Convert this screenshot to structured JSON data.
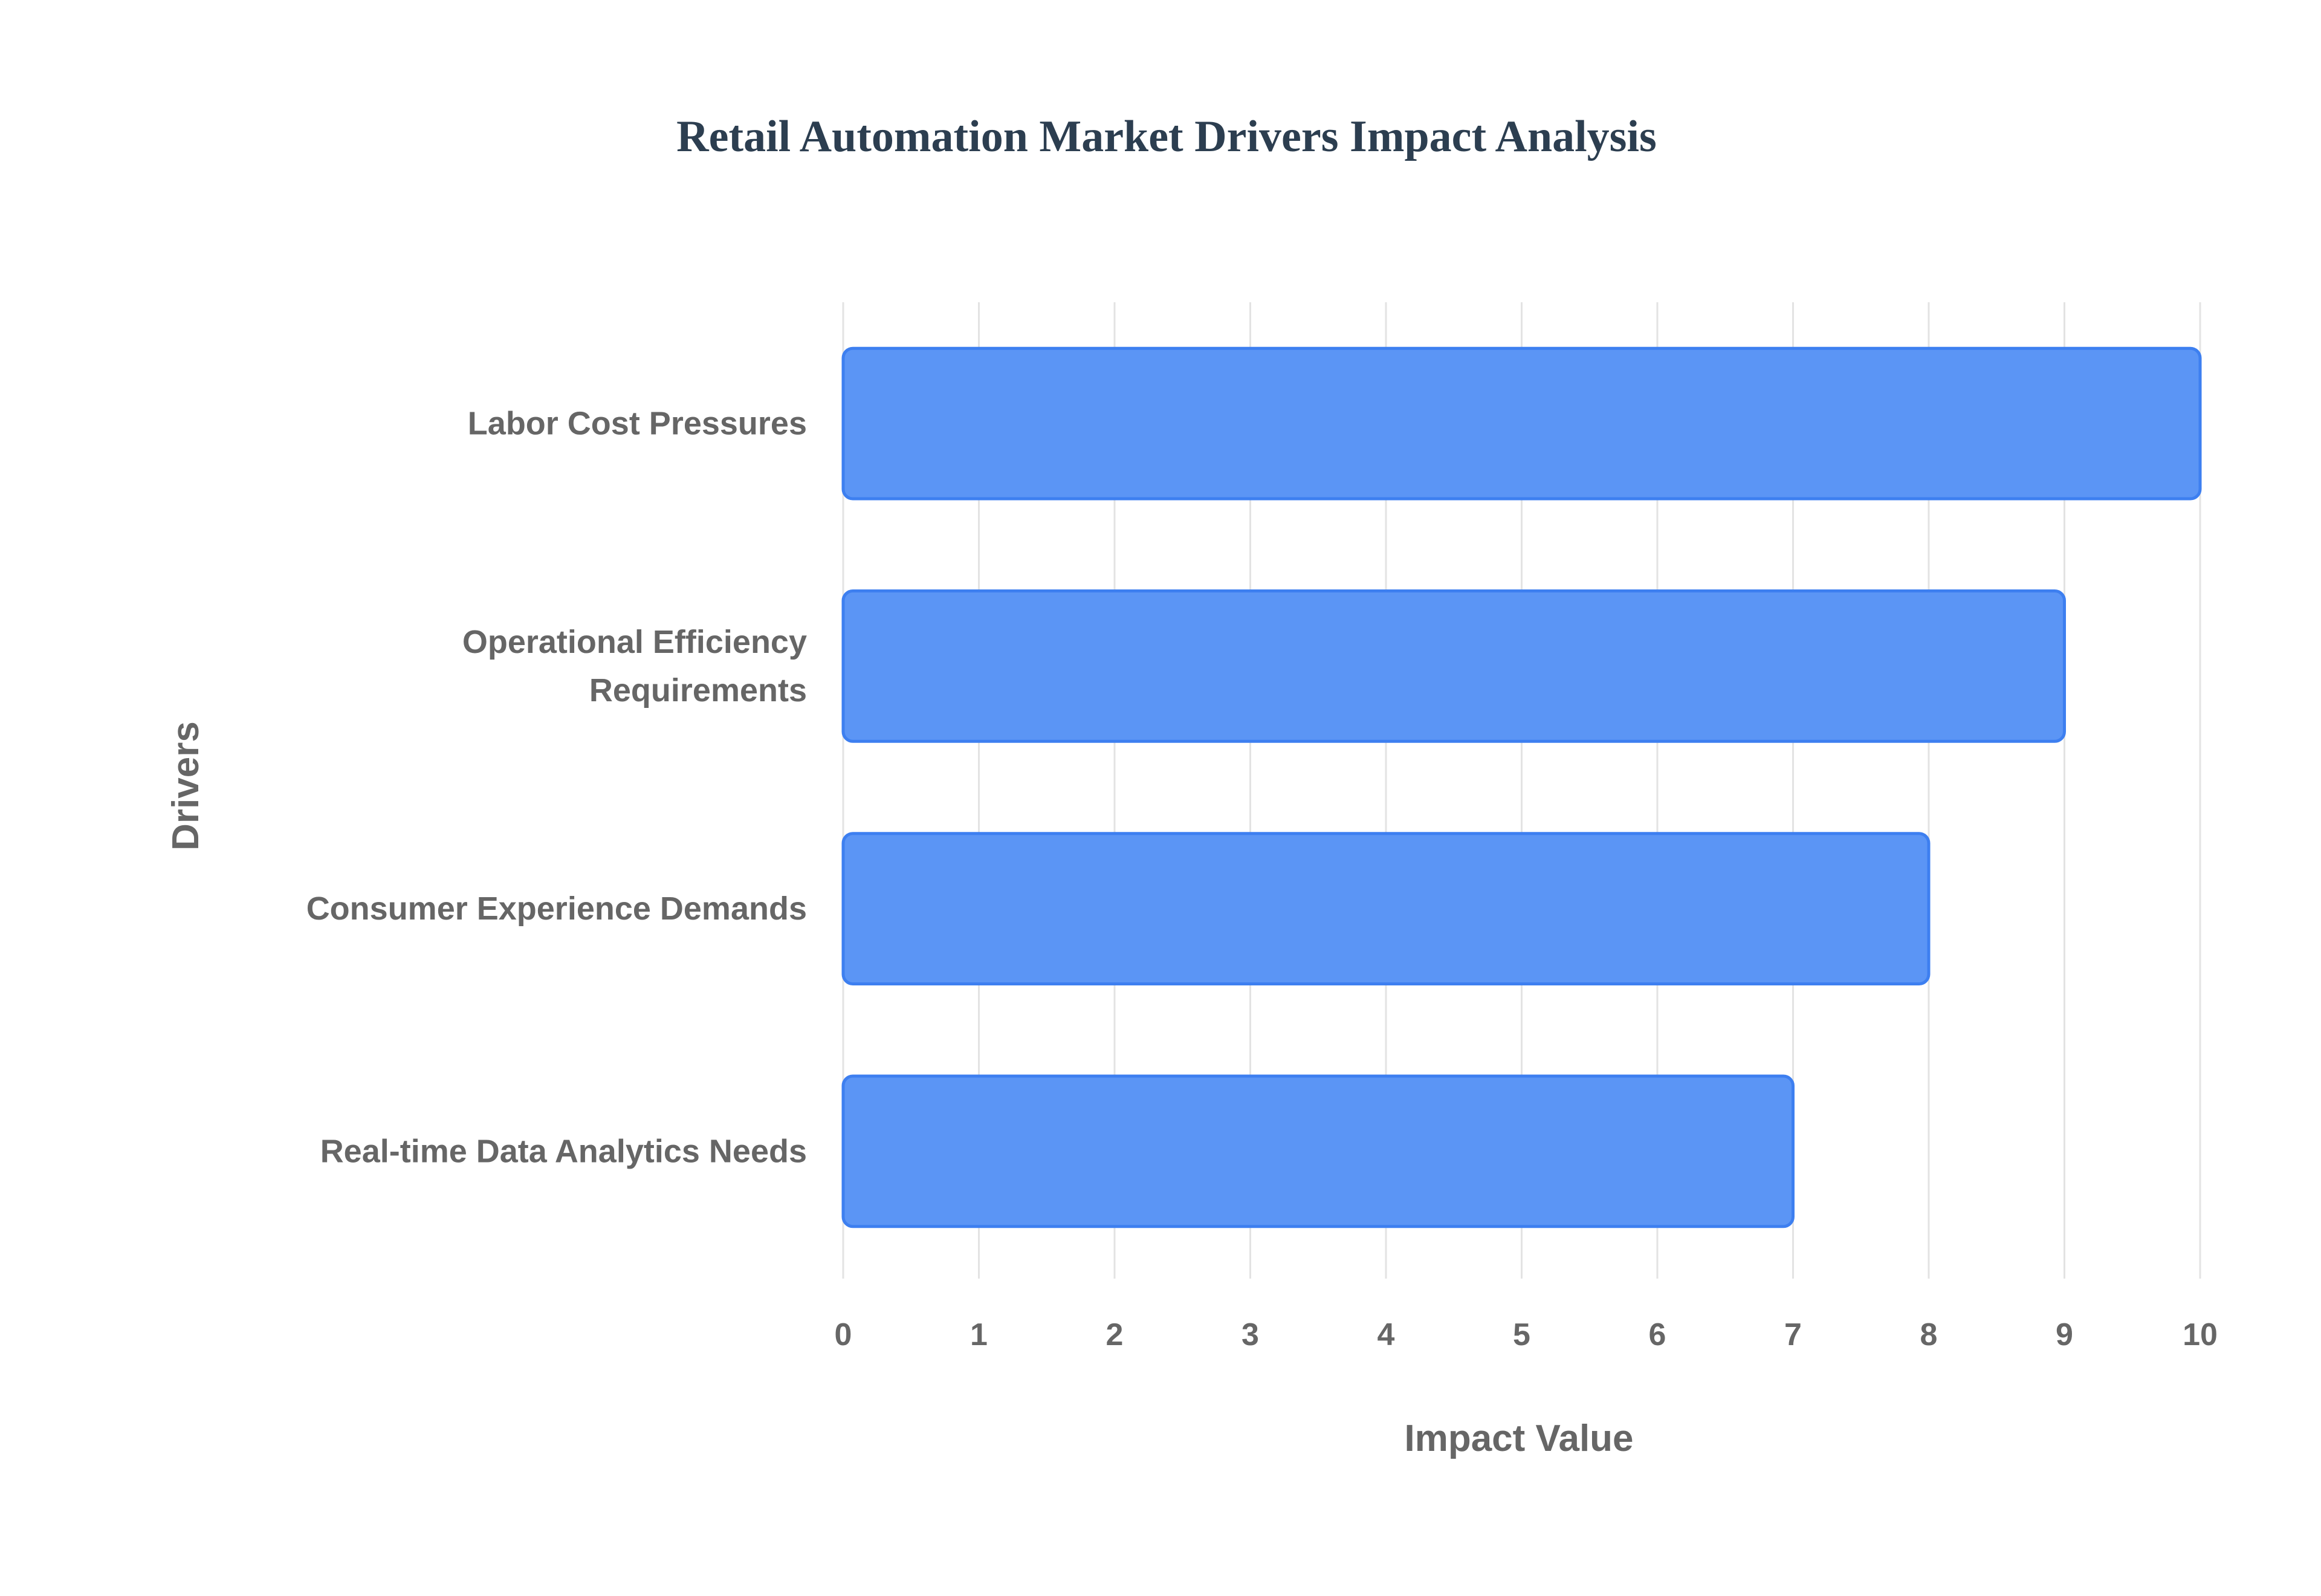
{
  "chart_data": {
    "type": "bar",
    "orientation": "horizontal",
    "title": "Retail Automation Market Drivers Impact Analysis",
    "xlabel": "Impact Value",
    "ylabel": "Drivers",
    "categories": [
      [
        "Labor Cost Pressures"
      ],
      [
        "Operational Efficiency",
        "Requirements"
      ],
      [
        "Consumer Experience Demands"
      ],
      [
        "Real-time Data Analytics Needs"
      ]
    ],
    "values": [
      10,
      9,
      8,
      7
    ],
    "xlim": [
      0,
      10
    ],
    "xticks": [
      "0",
      "1",
      "2",
      "3",
      "4",
      "5",
      "6",
      "7",
      "8",
      "9",
      "10"
    ],
    "grid": true,
    "legend": "none",
    "colors": {
      "bar_fill": "#5b95f5",
      "bar_stroke": "#3d7ff0",
      "title": "#2c3e50",
      "text": "#666666",
      "grid": "#e3e3e3"
    }
  }
}
